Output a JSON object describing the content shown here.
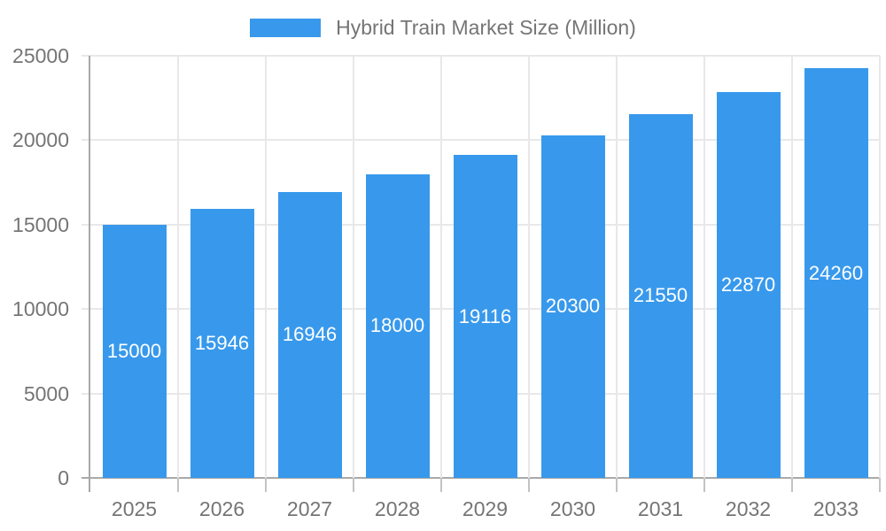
{
  "chart_data": {
    "type": "bar",
    "title": "Hybrid Train Market Size (Million)",
    "categories": [
      "2025",
      "2026",
      "2027",
      "2028",
      "2029",
      "2030",
      "2031",
      "2032",
      "2033"
    ],
    "values": [
      15000,
      15946,
      16946,
      18000,
      19116,
      20300,
      21550,
      22870,
      24260
    ],
    "series": [
      {
        "name": "Hybrid Train Market Size (Million)",
        "values": [
          15000,
          15946,
          16946,
          18000,
          19116,
          20300,
          21550,
          22870,
          24260
        ]
      }
    ],
    "xlabel": "",
    "ylabel": "",
    "ylim": [
      0,
      25000
    ],
    "yticks": [
      0,
      5000,
      10000,
      15000,
      20000,
      25000
    ],
    "grid": true,
    "legend_position": "top",
    "value_labels": "inside-center",
    "bar_color": "#3899ec",
    "value_label_color": "#ffffff",
    "axis_text_color": "#757575"
  }
}
